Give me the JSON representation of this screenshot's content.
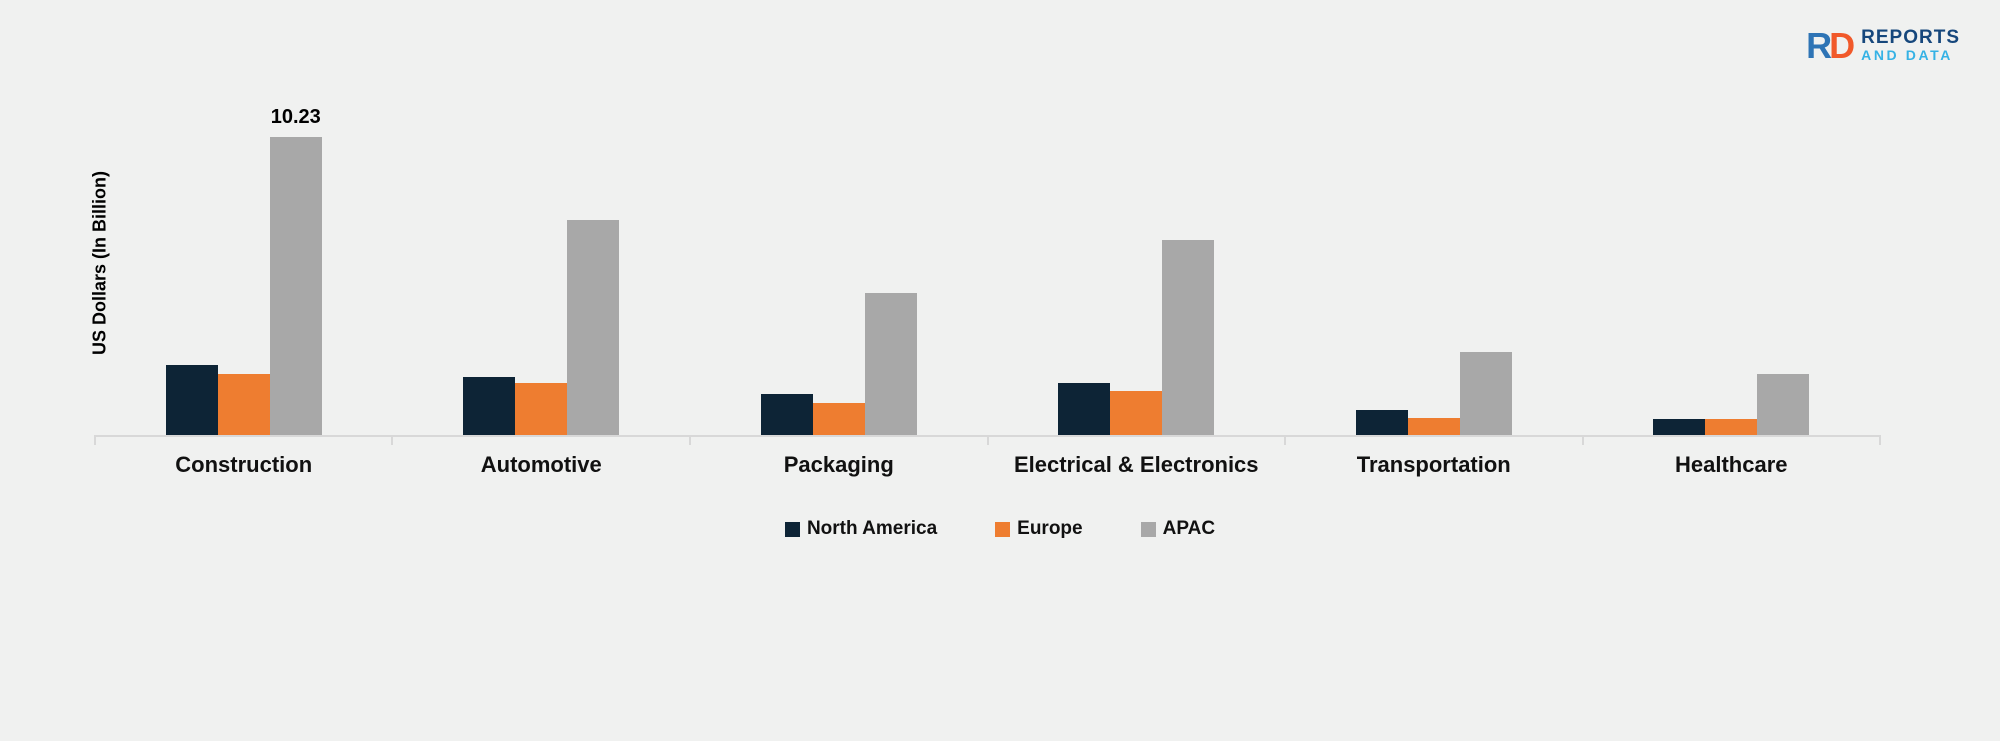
{
  "logo": {
    "mark_r": "R",
    "mark_d": "D",
    "line1": "REPORTS",
    "line2": "AND DATA"
  },
  "colors": {
    "background": "#f0f1f0",
    "axis_line": "#d8d8d8",
    "north_america": "#0d2436",
    "europe": "#ee7d30",
    "apac": "#a8a8a8",
    "logo_blue": "#2e74b5",
    "logo_orange": "#f1592a",
    "logo_text_dark": "#16477c",
    "logo_text_light": "#35b2e5"
  },
  "chart_data": {
    "type": "bar",
    "title": "",
    "xlabel": "",
    "ylabel": "US Dollars  (In Billion)",
    "ylim": [
      0,
      11
    ],
    "grid": false,
    "legend_position": "bottom",
    "categories": [
      "Construction",
      "Automotive",
      "Packaging",
      "Electrical & Electronics",
      "Transportation",
      "Healthcare"
    ],
    "series": [
      {
        "name": "North America",
        "color": "#0d2436",
        "values": [
          2.4,
          2.0,
          1.4,
          1.8,
          0.85,
          0.55
        ]
      },
      {
        "name": "Europe",
        "color": "#ee7d30",
        "values": [
          2.1,
          1.8,
          1.1,
          1.5,
          0.6,
          0.55
        ]
      },
      {
        "name": "APAC",
        "color": "#a8a8a8",
        "values": [
          10.23,
          7.4,
          4.9,
          6.7,
          2.85,
          2.1
        ]
      }
    ],
    "annotations": [
      {
        "series_index": 2,
        "category_index": 0,
        "series": "APAC",
        "category": "Construction",
        "text": "10.23"
      }
    ]
  }
}
